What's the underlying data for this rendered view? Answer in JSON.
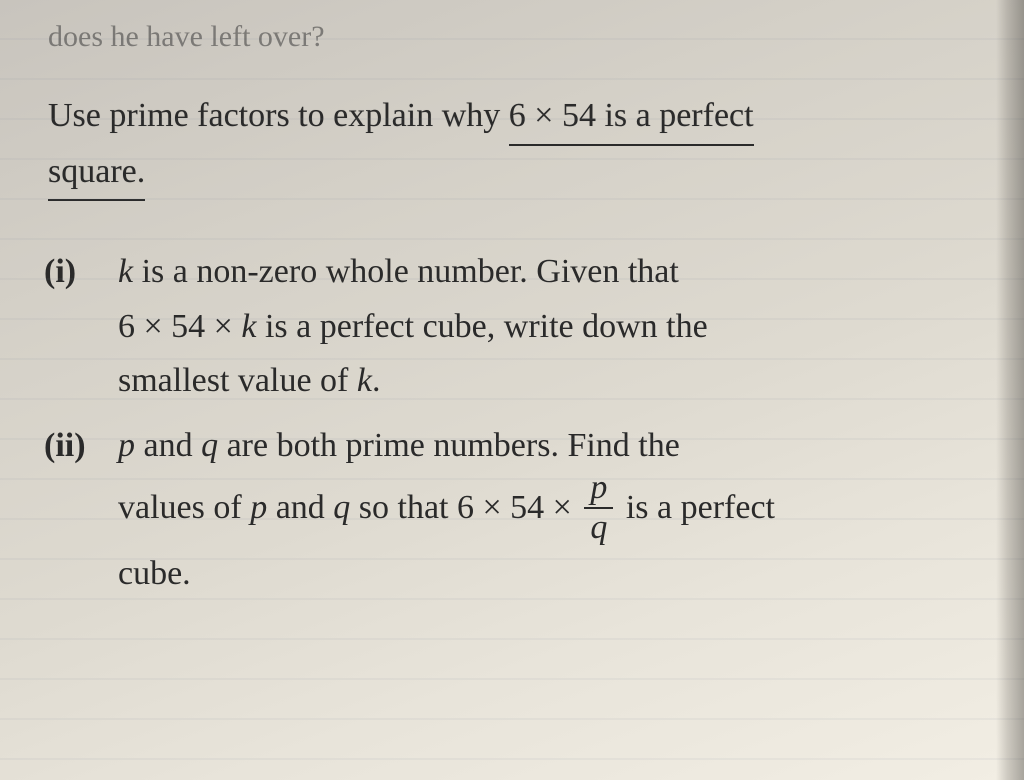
{
  "colors": {
    "text": "#2a2a2a",
    "bg_light": "#f2eee4",
    "bg_dark": "#c8c4bd",
    "underline": "#2a2a2a",
    "line_tint": "rgba(120,130,150,0.08)"
  },
  "typography": {
    "family": "Georgia / serif",
    "body_size_pt": 26,
    "cutoff_size_pt": 22,
    "line_height": 1.6,
    "italic_vars": true
  },
  "cutoff_line": "does he have left over?",
  "main_question": {
    "lead": "Use prime factors to explain why ",
    "expr": "6 × 54",
    "tail": " is a perfect",
    "line2": "square.",
    "underline_phrase_1": "6 × 54 is a perfect",
    "underline_phrase_2": "square."
  },
  "parts": [
    {
      "label": "(i)",
      "t1a": "k",
      "t1b": " is a non-zero whole number. Given that",
      "t2a": "6 × 54 × ",
      "t2b": "k",
      "t2c": " is a perfect cube, write down the",
      "t3a": "smallest value of ",
      "t3b": "k",
      "t3c": "."
    },
    {
      "label": "(ii)",
      "t1a": "p",
      "t1b": " and ",
      "t1c": "q",
      "t1d": " are both prime numbers. Find the",
      "t2a": "values of ",
      "t2b": "p",
      "t2c": " and ",
      "t2d": "q",
      "t2e": " so that 6 × 54 × ",
      "frac_top": "p",
      "frac_bot": "q",
      "t2f": " is a perfect",
      "t3": "cube."
    }
  ]
}
